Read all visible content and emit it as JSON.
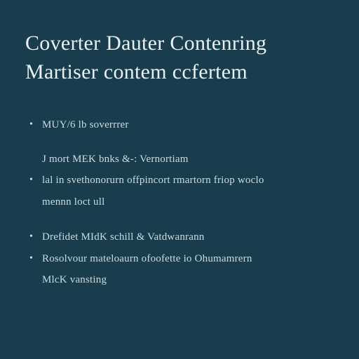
{
  "title": "Coverter Dauter Contenring Martiser contem ccfertem",
  "bullets": [
    {
      "text": "MUY/6 lb soverrrer",
      "gap": "gap-med",
      "bullet": true
    },
    {
      "text": "J mort   MEK bnks &-:   Vernortiam",
      "gap": "gap-small",
      "bullet": false
    },
    {
      "text": "lal in svethonorurn offpincort rmartorn friop woclo",
      "gap": "gap-small",
      "bullet": true
    },
    {
      "text": "mennn loct ull",
      "gap": "gap-large",
      "bullet": false
    },
    {
      "text": "Drefidet    MIdK schill &    Vatdwanrann",
      "gap": "gap-small",
      "bullet": true
    },
    {
      "text": "Rosolvour mateloaurn ofoofette io Ohumamrern",
      "gap": "gap-small",
      "bullet": true
    },
    {
      "text": "MlcK vansting",
      "gap": "gap-small",
      "bullet": false
    }
  ]
}
